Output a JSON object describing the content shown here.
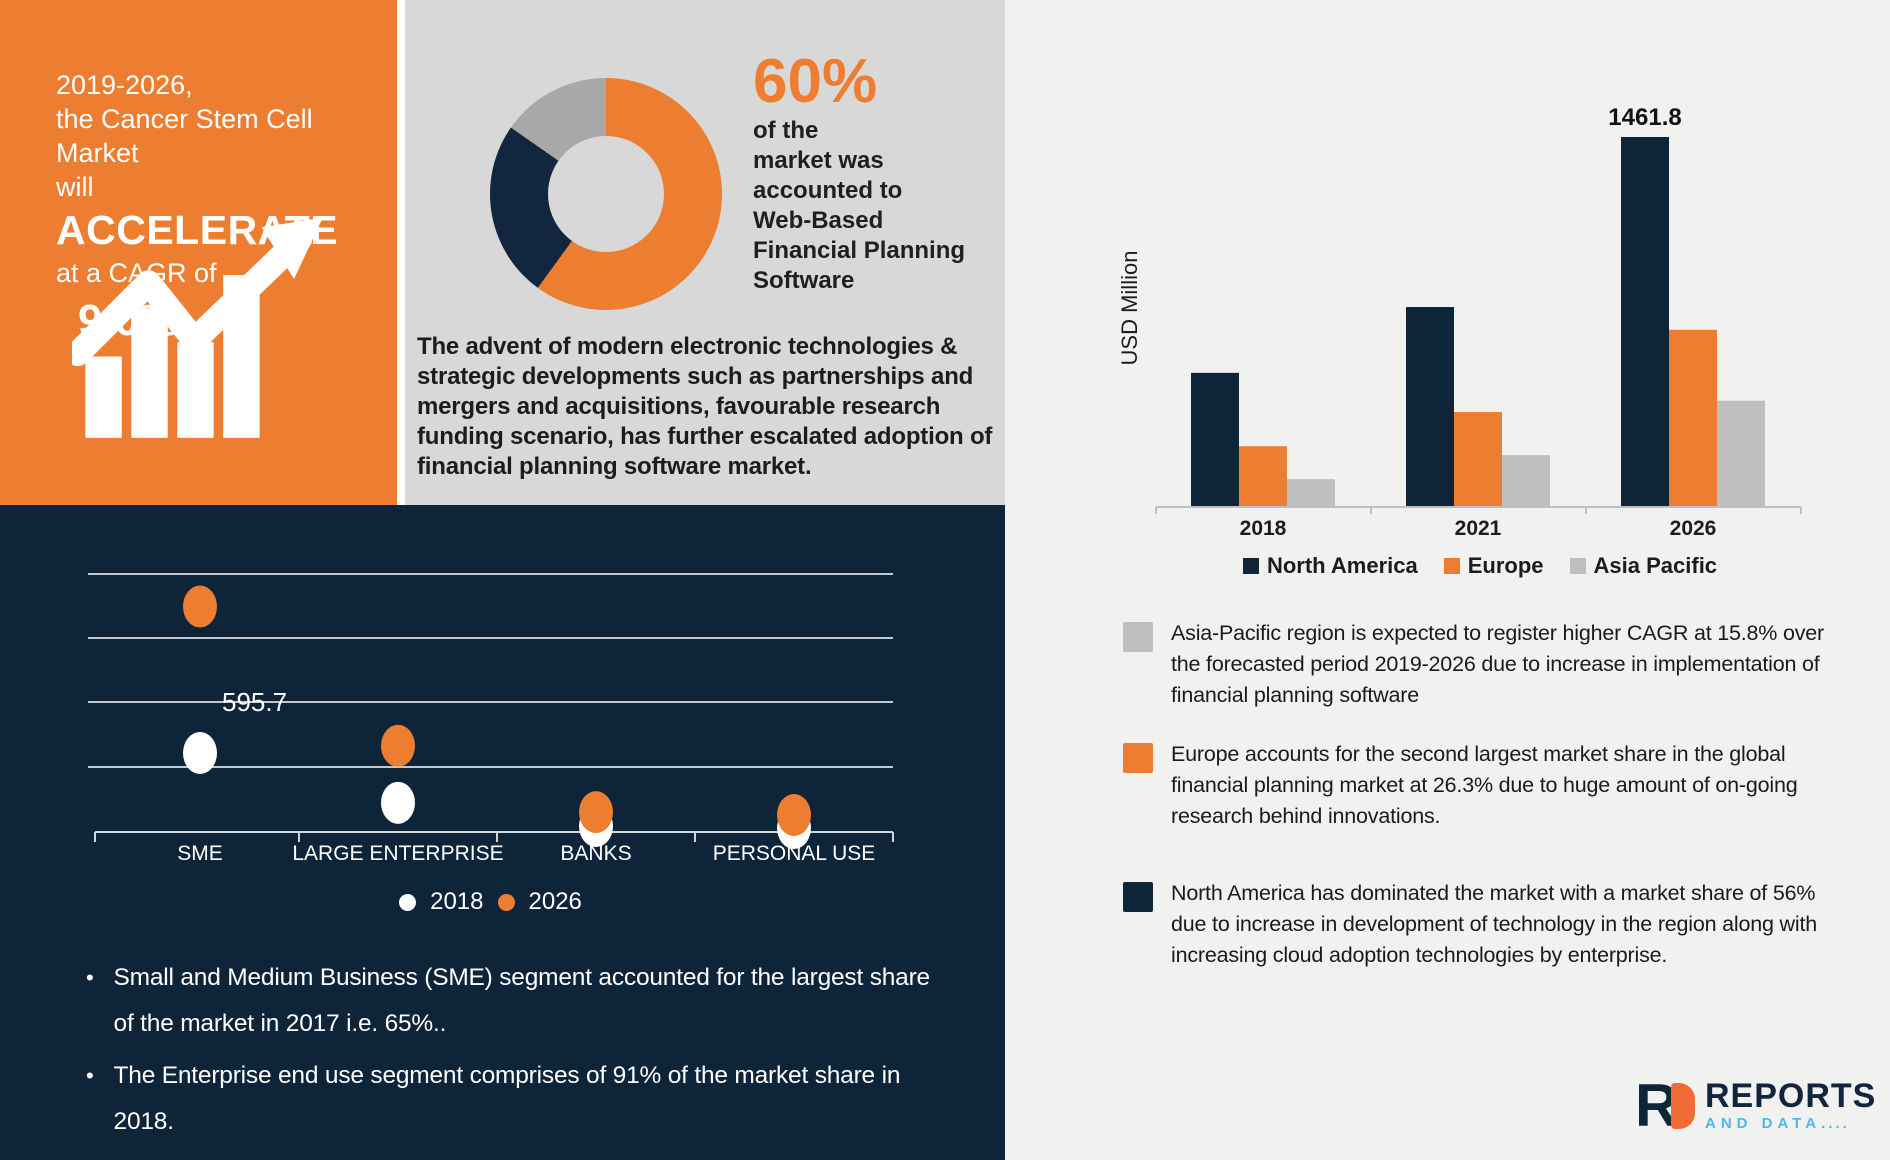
{
  "palette": {
    "orange": "#ED7D31",
    "navy": "#0E2439",
    "panel_gray": "#D8D8D8",
    "right_background": "#F1F1F0",
    "bar_gray": "#BFBFBF",
    "donut_gray": "#A8A8A8",
    "logo_blue": "#4FB8EA",
    "white": "#FFFFFF"
  },
  "left_panel": {
    "lines": [
      "2019-2026,",
      "the Cancer Stem Cell Market",
      "will"
    ],
    "accelerate": "ACCELERATE",
    "cagr_prefix": "at a CAGR of",
    "cagr_value": "9.0%",
    "icon": "growth-arrow-icon"
  },
  "gray_panel": {
    "stat_value": "60%",
    "stat_lines": [
      "of the",
      "market was",
      "accounted to",
      "Web-Based",
      "Financial Planning",
      "Software"
    ],
    "paragraph": "The advent of modern electronic technologies & strategic developments such as partnerships and mergers and acquisitions, favourable research funding scenario, has further escalated adoption of financial planning software market."
  },
  "navy_panel": {
    "bullets": [
      "Small and Medium Business (SME) segment accounted for the largest share of the market in 2017 i.e. 65%..",
      "The Enterprise end use segment comprises of 91% of the market share in 2018."
    ]
  },
  "right_panel": {
    "bullets": [
      {
        "marker_color": "#BFBFBF",
        "text": "Asia-Pacific region is expected to register higher CAGR at 15.8% over the forecasted period 2019-2026 due to increase in implementation of financial planning software"
      },
      {
        "marker_color": "#ED7D31",
        "text": "Europe accounts for the second largest market share in the global financial planning market at 26.3% due to huge amount of on-going research behind innovations."
      },
      {
        "marker_color": "#0E2439",
        "text": "North America has dominated the market with a market share of 56% due to increase in development of technology in the region along with increasing cloud adoption technologies by enterprise."
      }
    ]
  },
  "logo": {
    "mark": "R",
    "line1": "REPORTS",
    "line2": "AND DATA",
    "dots": "...."
  },
  "chart_data": [
    {
      "type": "pie",
      "title": "Share of market accounted to Web-Based Financial Planning Software",
      "slices": [
        {
          "label": "Web-Based Financial Planning Software",
          "value": 60,
          "color": "#ED7D31"
        },
        {
          "label": "",
          "value": 24.7,
          "color": "#12273F"
        },
        {
          "label": "",
          "value": 15.3,
          "color": "#A8A8A8"
        }
      ],
      "donut": true,
      "labeled_value": "60%"
    },
    {
      "type": "bar",
      "categories": [
        "2018",
        "2021",
        "2026"
      ],
      "series": [
        {
          "name": "North America",
          "color": "#0E2439",
          "values": [
            530,
            790,
            1461.8
          ]
        },
        {
          "name": "Europe",
          "color": "#ED7D31",
          "values": [
            240,
            375,
            700
          ]
        },
        {
          "name": "Asia Pacific",
          "color": "#BFBFBF",
          "values": [
            110,
            205,
            420
          ]
        }
      ],
      "ylabel": "USD Million",
      "xlabel": "",
      "ylim": [
        0,
        1550
      ],
      "grid": false,
      "legend_position": "bottom",
      "annotation": {
        "label": "1461.8",
        "series": "North America",
        "category": "2026"
      },
      "note": "only the 1461.8 data label is shown; other values estimated from bar heights"
    },
    {
      "type": "scatter",
      "categories": [
        "SME",
        "LARGE ENTERPRISE",
        "BANKS",
        "PERSONAL USE"
      ],
      "series": [
        {
          "name": "2018",
          "color": "#FFFFFF",
          "values": [
            595.7,
            220,
            45,
            30
          ]
        },
        {
          "name": "2026",
          "color": "#ED7D31",
          "values": [
            1700,
            650,
            150,
            128
          ]
        }
      ],
      "ylim": [
        0,
        2000
      ],
      "grid": true,
      "legend_position": "bottom",
      "annotation": {
        "label": "595.7",
        "series": "2018",
        "category": "SME"
      },
      "note": "only the 595.7 data label is shown; other values estimated from dot positions"
    }
  ]
}
